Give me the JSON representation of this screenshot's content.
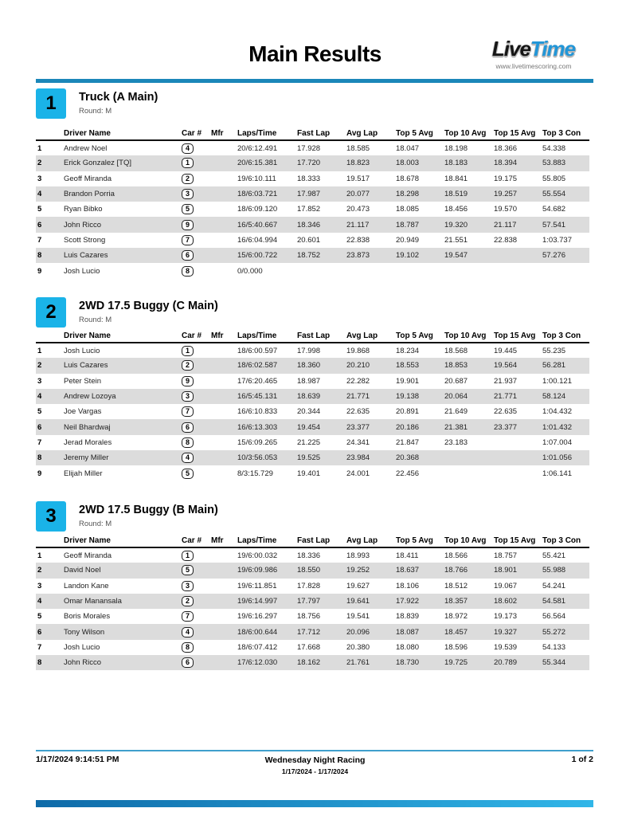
{
  "page": {
    "title": "Main Results"
  },
  "logo": {
    "word1": "Live",
    "word2": "Time",
    "url": "www.livetimescoring.com"
  },
  "table_columns": [
    "Driver Name",
    "Car #",
    "Mfr",
    "Laps/Time",
    "Fast Lap",
    "Avg Lap",
    "Top 5 Avg",
    "Top 10 Avg",
    "Top 15 Avg",
    "Top 3 Con"
  ],
  "sections": [
    {
      "number": "1",
      "title": "Truck (A Main)",
      "round": "Round: M",
      "rows": [
        [
          "1",
          "Andrew Noel",
          "4",
          "",
          "20/6:12.491",
          "17.928",
          "18.585",
          "18.047",
          "18.198",
          "18.366",
          "54.338"
        ],
        [
          "2",
          "Erick Gonzalez [TQ]",
          "1",
          "",
          "20/6:15.381",
          "17.720",
          "18.823",
          "18.003",
          "18.183",
          "18.394",
          "53.883"
        ],
        [
          "3",
          "Geoff Miranda",
          "2",
          "",
          "19/6:10.111",
          "18.333",
          "19.517",
          "18.678",
          "18.841",
          "19.175",
          "55.805"
        ],
        [
          "4",
          "Brandon Porria",
          "3",
          "",
          "18/6:03.721",
          "17.987",
          "20.077",
          "18.298",
          "18.519",
          "19.257",
          "55.554"
        ],
        [
          "5",
          "Ryan Bibko",
          "5",
          "",
          "18/6:09.120",
          "17.852",
          "20.473",
          "18.085",
          "18.456",
          "19.570",
          "54.682"
        ],
        [
          "6",
          "John Ricco",
          "9",
          "",
          "16/5:40.667",
          "18.346",
          "21.117",
          "18.787",
          "19.320",
          "21.117",
          "57.541"
        ],
        [
          "7",
          "Scott Strong",
          "7",
          "",
          "16/6:04.994",
          "20.601",
          "22.838",
          "20.949",
          "21.551",
          "22.838",
          "1:03.737"
        ],
        [
          "8",
          "Luis Cazares",
          "6",
          "",
          "15/6:00.722",
          "18.752",
          "23.873",
          "19.102",
          "19.547",
          "",
          "57.276"
        ],
        [
          "9",
          "Josh Lucio",
          "8",
          "",
          "0/0.000",
          "",
          "",
          "",
          "",
          "",
          ""
        ]
      ]
    },
    {
      "number": "2",
      "title": "2WD 17.5 Buggy (C Main)",
      "round": "Round: M",
      "rows": [
        [
          "1",
          "Josh Lucio",
          "1",
          "",
          "18/6:00.597",
          "17.998",
          "19.868",
          "18.234",
          "18.568",
          "19.445",
          "55.235"
        ],
        [
          "2",
          "Luis Cazares",
          "2",
          "",
          "18/6:02.587",
          "18.360",
          "20.210",
          "18.553",
          "18.853",
          "19.564",
          "56.281"
        ],
        [
          "3",
          "Peter Stein",
          "9",
          "",
          "17/6:20.465",
          "18.987",
          "22.282",
          "19.901",
          "20.687",
          "21.937",
          "1:00.121"
        ],
        [
          "4",
          "Andrew Lozoya",
          "3",
          "",
          "16/5:45.131",
          "18.639",
          "21.771",
          "19.138",
          "20.064",
          "21.771",
          "58.124"
        ],
        [
          "5",
          "Joe Vargas",
          "7",
          "",
          "16/6:10.833",
          "20.344",
          "22.635",
          "20.891",
          "21.649",
          "22.635",
          "1:04.432"
        ],
        [
          "6",
          "Neil Bhardwaj",
          "6",
          "",
          "16/6:13.303",
          "19.454",
          "23.377",
          "20.186",
          "21.381",
          "23.377",
          "1:01.432"
        ],
        [
          "7",
          "Jerad Morales",
          "8",
          "",
          "15/6:09.265",
          "21.225",
          "24.341",
          "21.847",
          "23.183",
          "",
          "1:07.004"
        ],
        [
          "8",
          "Jeremy Miller",
          "4",
          "",
          "10/3:56.053",
          "19.525",
          "23.984",
          "20.368",
          "",
          "",
          "1:01.056"
        ],
        [
          "9",
          "Elijah Miller",
          "5",
          "",
          "8/3:15.729",
          "19.401",
          "24.001",
          "22.456",
          "",
          "",
          "1:06.141"
        ]
      ]
    },
    {
      "number": "3",
      "title": "2WD 17.5 Buggy (B Main)",
      "round": "Round: M",
      "rows": [
        [
          "1",
          "Geoff Miranda",
          "1",
          "",
          "19/6:00.032",
          "18.336",
          "18.993",
          "18.411",
          "18.566",
          "18.757",
          "55.421"
        ],
        [
          "2",
          "David Noel",
          "5",
          "",
          "19/6:09.986",
          "18.550",
          "19.252",
          "18.637",
          "18.766",
          "18.901",
          "55.988"
        ],
        [
          "3",
          "Landon Kane",
          "3",
          "",
          "19/6:11.851",
          "17.828",
          "19.627",
          "18.106",
          "18.512",
          "19.067",
          "54.241"
        ],
        [
          "4",
          "Omar Manansala",
          "2",
          "",
          "19/6:14.997",
          "17.797",
          "19.641",
          "17.922",
          "18.357",
          "18.602",
          "54.581"
        ],
        [
          "5",
          "Boris Morales",
          "7",
          "",
          "19/6:16.297",
          "18.756",
          "19.541",
          "18.839",
          "18.972",
          "19.173",
          "56.564"
        ],
        [
          "6",
          "Tony Wilson",
          "4",
          "",
          "18/6:00.644",
          "17.712",
          "20.096",
          "18.087",
          "18.457",
          "19.327",
          "55.272"
        ],
        [
          "7",
          "Josh Lucio",
          "8",
          "",
          "18/6:07.412",
          "17.668",
          "20.380",
          "18.080",
          "18.596",
          "19.539",
          "54.133"
        ],
        [
          "8",
          "John Ricco",
          "6",
          "",
          "17/6:12.030",
          "18.162",
          "21.761",
          "18.730",
          "19.725",
          "20.789",
          "55.344"
        ]
      ]
    }
  ],
  "footer": {
    "timestamp": "1/17/2024 9:14:51 PM",
    "event_name": "Wednesday Night Racing",
    "date_range": "1/17/2024 - 1/17/2024",
    "page_number": "1 of 2"
  },
  "colors": {
    "accent_cyan": "#1ab3e8",
    "header_rule_blue": "#1b87b9",
    "row_stripe_gray": "#dcdcdc",
    "logo_time_blue": "#2196d8"
  }
}
